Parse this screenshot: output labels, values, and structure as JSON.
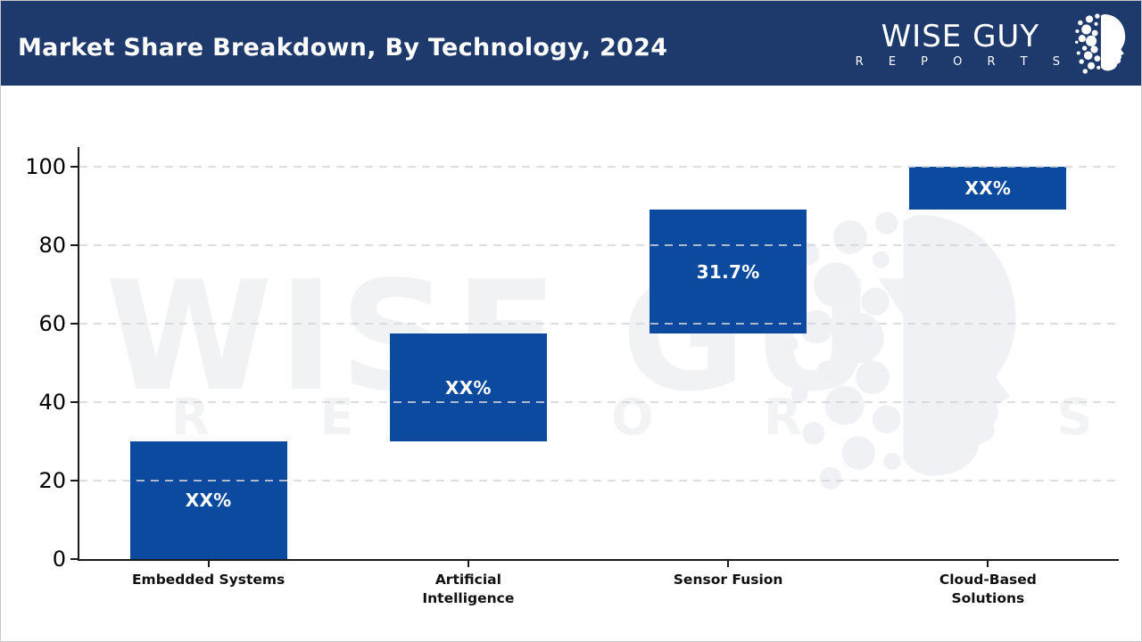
{
  "header": {
    "title": "Market Share Breakdown, By Technology, 2024",
    "logo": {
      "line1": "WISE GUY",
      "line2": "R E P O R T S"
    }
  },
  "watermark": {
    "line1": "WISE GUY",
    "line2": "R E P O R T S"
  },
  "chart_data": {
    "type": "bar",
    "subtype": "floating-waterfall",
    "title": "Market Share Breakdown, By Technology, 2024",
    "categories": [
      "Embedded Systems",
      "Artificial\nIntelligence",
      "Sensor Fusion",
      "Cloud-Based\nSolutions"
    ],
    "bars": [
      {
        "category": "Embedded Systems",
        "start": 0,
        "value": 30.0,
        "label": "XX%"
      },
      {
        "category": "Artificial Intelligence",
        "start": 30.0,
        "value": 27.4,
        "label": "XX%"
      },
      {
        "category": "Sensor Fusion",
        "start": 57.4,
        "value": 31.7,
        "label": "31.7%"
      },
      {
        "category": "Cloud-Based Solutions",
        "start": 89.1,
        "value": 10.9,
        "label": "XX%"
      }
    ],
    "xlabel": "",
    "ylabel": "",
    "yticks": [
      0,
      20,
      40,
      60,
      80,
      100
    ],
    "ylim": [
      0,
      105
    ],
    "grid": "dashed-horizontal",
    "legend": "none",
    "colors": {
      "bar": "#0b4a9f",
      "header_bg": "#1e3a6d",
      "grid": "#d5d5d8",
      "axis": "#1a1a1a",
      "bar_label": "#ffffff",
      "watermark": "#eff1f4"
    }
  }
}
